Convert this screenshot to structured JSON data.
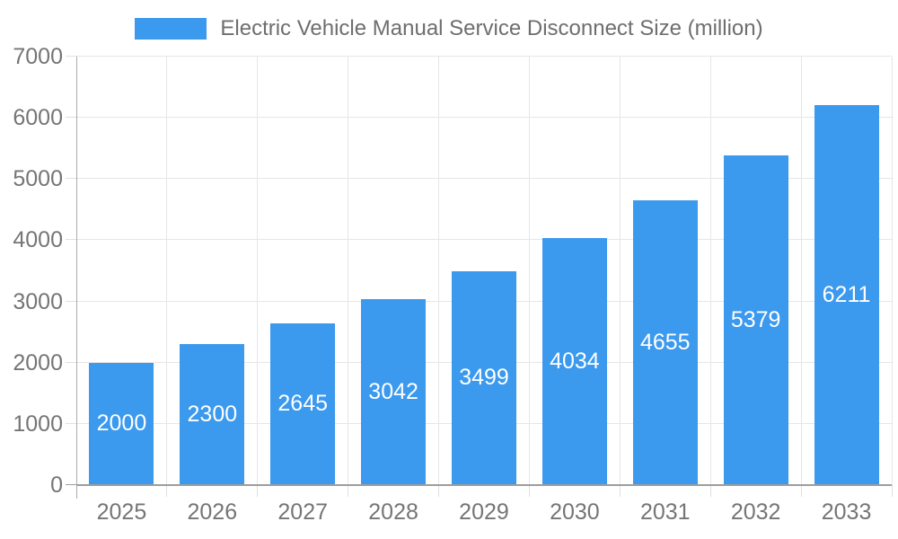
{
  "chart_data": {
    "type": "bar",
    "title": "Electric Vehicle Manual Service Disconnect Size (million)",
    "legend_label": "Electric Vehicle Manual Service Disconnect Size (million)",
    "legend_position": "top",
    "categories": [
      "2025",
      "2026",
      "2027",
      "2028",
      "2029",
      "2030",
      "2031",
      "2032",
      "2033"
    ],
    "values": [
      2000,
      2300,
      2645,
      3042,
      3499,
      4034,
      4655,
      5379,
      6211
    ],
    "value_labels": [
      "2000",
      "2300",
      "2645",
      "3042",
      "3499",
      "4034",
      "4655",
      "5379",
      "6211"
    ],
    "xlabel": "",
    "ylabel": "",
    "ylim": [
      0,
      7000
    ],
    "yticks": [
      0,
      1000,
      2000,
      3000,
      4000,
      5000,
      6000,
      7000
    ],
    "grid": true
  },
  "colors": {
    "bar": "#3B99EE",
    "value_label": "#ffffff",
    "axis_label": "#757575",
    "title": "#6e6e6e",
    "gridline": "#e6e6e6",
    "axis_line": "#9e9e9e",
    "tick": "#e0e0e0",
    "background": "#ffffff"
  }
}
